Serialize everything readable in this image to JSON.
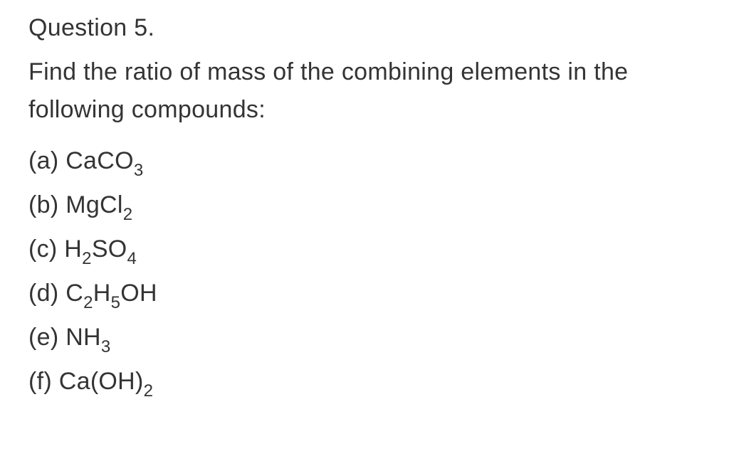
{
  "text_color": "#343434",
  "background_color": "#ffffff",
  "base_fontsize": 34,
  "sub_fontsize": 24,
  "question_title": "Question 5.",
  "question_prompt": "Find the ratio of mass of the combining elements in the following compounds:",
  "options": [
    {
      "label": "(a) ",
      "formula_parts": [
        {
          "text": "CaCO",
          "sub": false
        },
        {
          "text": "3",
          "sub": true
        }
      ]
    },
    {
      "label": "(b) ",
      "formula_parts": [
        {
          "text": "MgCl",
          "sub": false
        },
        {
          "text": "2",
          "sub": true
        }
      ]
    },
    {
      "label": "(c) ",
      "formula_parts": [
        {
          "text": "H",
          "sub": false
        },
        {
          "text": "2",
          "sub": true
        },
        {
          "text": "SO",
          "sub": false
        },
        {
          "text": "4",
          "sub": true
        }
      ]
    },
    {
      "label": "(d) ",
      "formula_parts": [
        {
          "text": "C",
          "sub": false
        },
        {
          "text": "2",
          "sub": true
        },
        {
          "text": "H",
          "sub": false
        },
        {
          "text": "5",
          "sub": true
        },
        {
          "text": "OH",
          "sub": false
        }
      ]
    },
    {
      "label": "(e) ",
      "formula_parts": [
        {
          "text": "NH",
          "sub": false
        },
        {
          "text": "3",
          "sub": true
        }
      ]
    },
    {
      "label": "(f) ",
      "formula_parts": [
        {
          "text": "Ca(OH)",
          "sub": false
        },
        {
          "text": "2",
          "sub": true
        }
      ]
    }
  ]
}
